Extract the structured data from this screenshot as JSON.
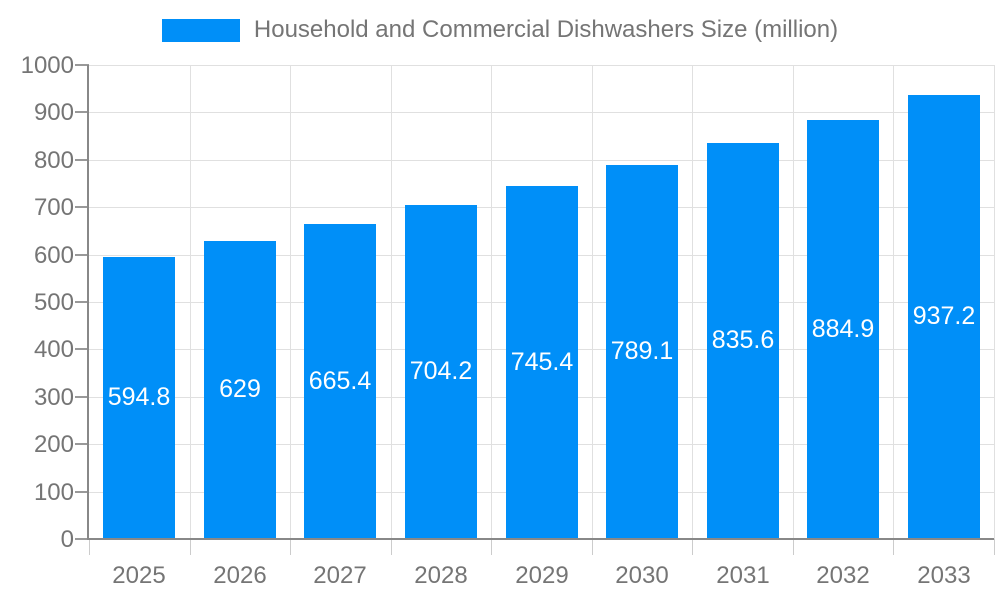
{
  "legend": {
    "label": "Household and Commercial Dishwashers Size (million)",
    "swatch_color": "#008FF8"
  },
  "chart_data": {
    "type": "bar",
    "title": "Household and Commercial Dishwashers Size (million)",
    "categories": [
      "2025",
      "2026",
      "2027",
      "2028",
      "2029",
      "2030",
      "2031",
      "2032",
      "2033"
    ],
    "values": [
      594.8,
      629,
      665.4,
      704.2,
      745.4,
      789.1,
      835.6,
      884.9,
      937.2
    ],
    "value_labels": [
      "594.8",
      "629",
      "665.4",
      "704.2",
      "745.4",
      "789.1",
      "835.6",
      "884.9",
      "937.2"
    ],
    "series_name": "Household and Commercial Dishwashers Size (million)",
    "xlabel": "",
    "ylabel": "",
    "ylim": [
      0,
      1000
    ],
    "ytick_step": 100,
    "ytick_labels": [
      "0",
      "100",
      "200",
      "300",
      "400",
      "500",
      "600",
      "700",
      "800",
      "900",
      "1000"
    ],
    "grid": true,
    "legend_position": "top-center",
    "bar_color": "#008FF8",
    "value_label_color": "#FFFFFF",
    "axis_text_color": "#757575",
    "axis_line_color": "#888888",
    "grid_color": "#E0E0E0"
  }
}
